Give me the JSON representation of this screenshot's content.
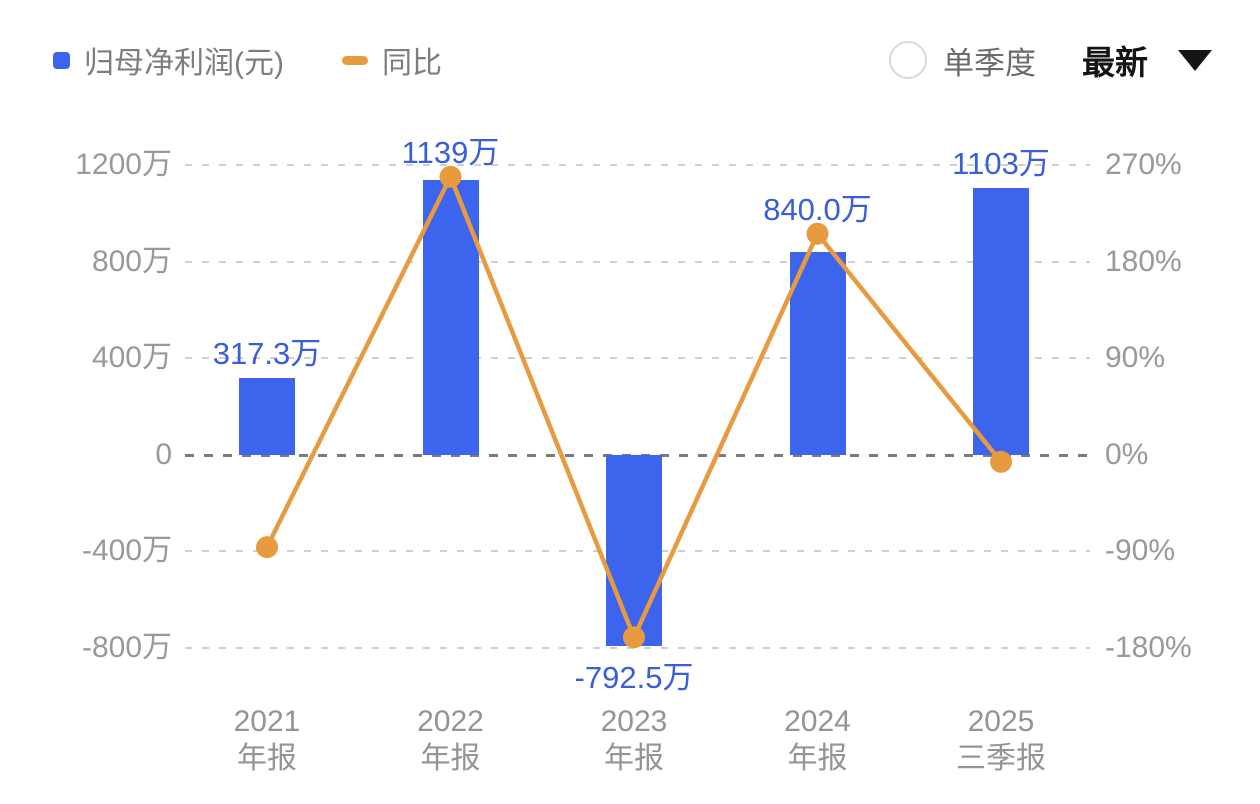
{
  "legend": {
    "profit_label": "归母净利润(元)",
    "yoy_label": "同比"
  },
  "controls": {
    "quarter_toggle_label": "单季度",
    "period_selector_value": "最新"
  },
  "colors": {
    "bar": "#3d64ed",
    "line": "#e89a3f",
    "data_label": "#3a5ed8",
    "axis_text": "#999999",
    "grid": "#cfcfcf",
    "zero_grid": "#7b7b7b"
  },
  "chart_data": {
    "type": "bar",
    "categories": [
      {
        "year": "2021",
        "period": "年报"
      },
      {
        "year": "2022",
        "period": "年报"
      },
      {
        "year": "2023",
        "period": "年报"
      },
      {
        "year": "2024",
        "period": "年报"
      },
      {
        "year": "2025",
        "period": "三季报"
      }
    ],
    "series": [
      {
        "name": "归母净利润(元)",
        "type": "bar",
        "unit": "万",
        "values": [
          317.3,
          1139,
          -792.5,
          840.0,
          1103
        ],
        "labels": [
          "317.3万",
          "1139万",
          "-792.5万",
          "840.0万",
          "1103万"
        ]
      },
      {
        "name": "同比",
        "type": "line",
        "unit": "%",
        "values": [
          -86,
          259,
          -170,
          206,
          -6.5
        ]
      }
    ],
    "left_axis": {
      "title": "归母净利润(元)",
      "tick_labels": [
        "1200万",
        "800万",
        "400万",
        "0",
        "-400万",
        "-800万"
      ],
      "tick_values": [
        1200,
        800,
        400,
        0,
        -400,
        -800
      ],
      "range": [
        -800,
        1200
      ]
    },
    "right_axis": {
      "title": "同比",
      "tick_labels": [
        "270%",
        "180%",
        "90%",
        "0%",
        "-90%",
        "-180%"
      ],
      "tick_values": [
        270,
        180,
        90,
        0,
        -90,
        -180
      ],
      "range": [
        -180,
        270
      ]
    },
    "grid": "dashed-horizontal",
    "legend_position": "top-left"
  }
}
